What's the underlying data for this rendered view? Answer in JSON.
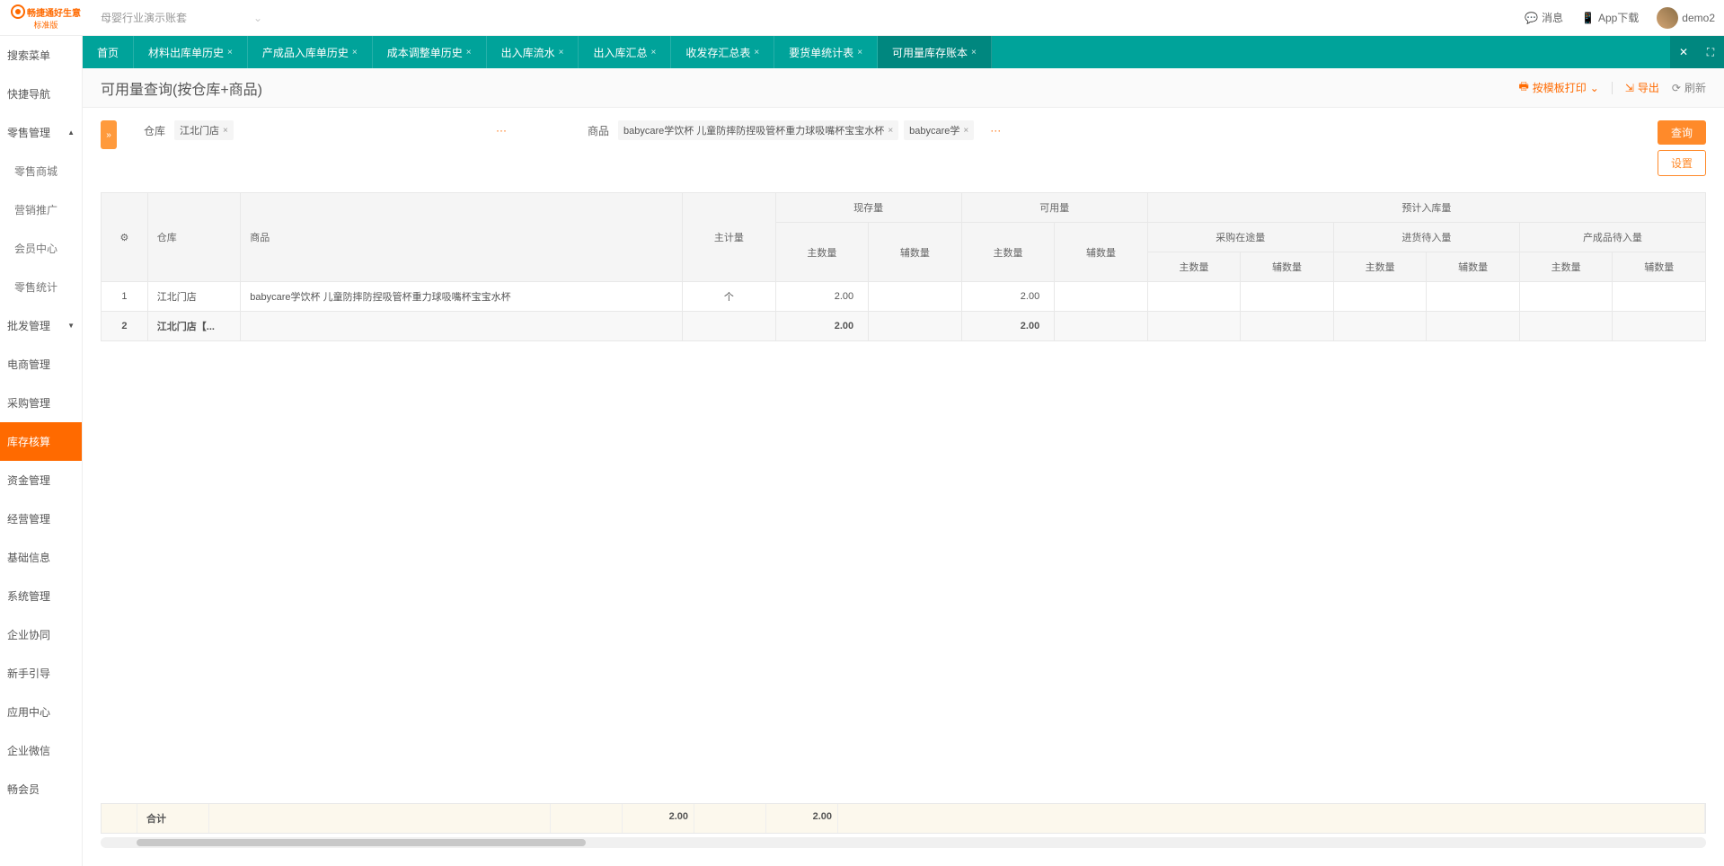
{
  "header": {
    "brand_name": "畅捷通好生意",
    "brand_edition": "标准版",
    "account": "母婴行业演示账套",
    "msg": "消息",
    "app": "App下载",
    "user": "demo2"
  },
  "sidebar": {
    "search": "搜索菜单",
    "quicknav": "快捷导航",
    "groups": [
      {
        "label": "零售管理",
        "expanded": true,
        "children": [
          "零售商城",
          "营销推广",
          "会员中心",
          "零售统计"
        ]
      },
      {
        "label": "批发管理",
        "expanded": false
      },
      {
        "label": "电商管理"
      },
      {
        "label": "采购管理"
      },
      {
        "label": "库存核算",
        "active": true
      },
      {
        "label": "资金管理"
      },
      {
        "label": "经营管理"
      },
      {
        "label": "基础信息"
      },
      {
        "label": "系统管理"
      },
      {
        "label": "企业协同"
      },
      {
        "label": "新手引导"
      },
      {
        "label": "应用中心"
      },
      {
        "label": "企业微信"
      },
      {
        "label": "畅会员"
      }
    ]
  },
  "tabs": [
    {
      "label": "首页",
      "closable": false
    },
    {
      "label": "材料出库单历史",
      "closable": true
    },
    {
      "label": "产成品入库单历史",
      "closable": true
    },
    {
      "label": "成本调整单历史",
      "closable": true
    },
    {
      "label": "出入库流水",
      "closable": true
    },
    {
      "label": "出入库汇总",
      "closable": true
    },
    {
      "label": "收发存汇总表",
      "closable": true
    },
    {
      "label": "要货单统计表",
      "closable": true
    },
    {
      "label": "可用量库存账本",
      "closable": true,
      "active": true
    }
  ],
  "page": {
    "title": "可用量查询(按仓库+商品)",
    "print": "按模板打印",
    "export": "导出",
    "refresh": "刷新"
  },
  "filter": {
    "wh_label": "仓库",
    "wh_tags": [
      "江北门店"
    ],
    "prod_label": "商品",
    "prod_tags": [
      "babycare学饮杯 儿童防摔防捏吸管杯重力球吸嘴杯宝宝水杯",
      "babycare学"
    ],
    "query": "查询",
    "settings": "设置",
    "more": "···"
  },
  "table": {
    "headers": {
      "gear": "⚙",
      "warehouse": "仓库",
      "product": "商品",
      "unit": "主计量",
      "stock": "现存量",
      "available": "可用量",
      "expected": "预计入库量",
      "purchase": "采购在途量",
      "incoming": "进货待入量",
      "finished": "产成品待入量",
      "main_qty": "主数量",
      "aux_qty": "辅数量"
    },
    "rows": [
      {
        "idx": "1",
        "wh": "江北门店",
        "prod": "babycare学饮杯 儿童防摔防捏吸管杯重力球吸嘴杯宝宝水杯",
        "unit": "个",
        "stock_main": "2.00",
        "avail_main": "2.00"
      },
      {
        "idx": "2",
        "wh": "江北门店【...",
        "prod": "",
        "unit": "",
        "stock_main": "2.00",
        "avail_main": "2.00",
        "subtotal": true
      }
    ],
    "total": {
      "label": "合计",
      "stock_main": "2.00",
      "avail_main": "2.00"
    }
  }
}
